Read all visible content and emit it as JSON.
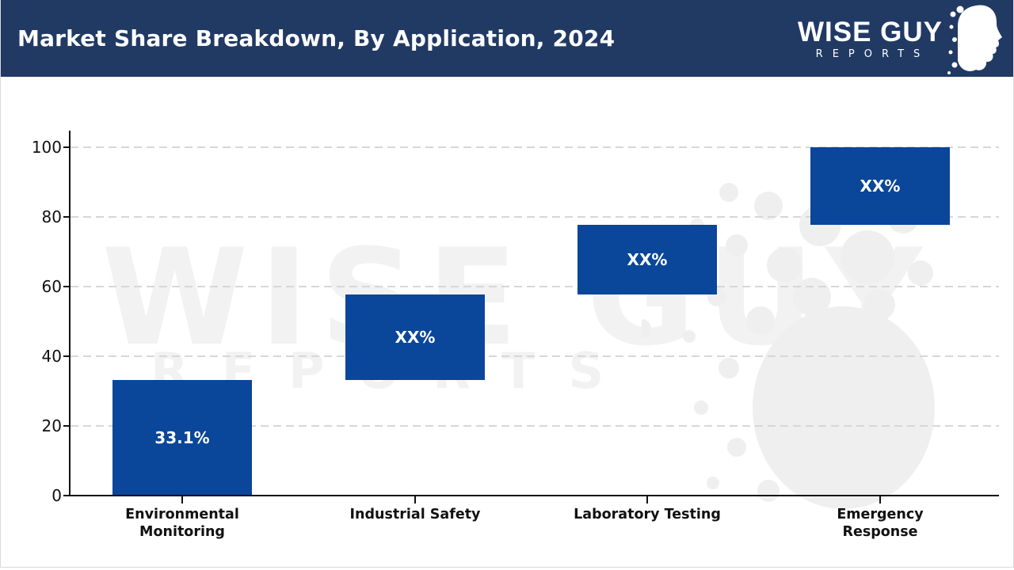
{
  "header": {
    "title": "Market Share Breakdown, By Application, 2024",
    "background_color": "#213a64",
    "brand": {
      "line1": "WISE GUY",
      "line2": "REPORTS"
    }
  },
  "watermark": {
    "line1": "WISE GUY",
    "line2": "REPORTS"
  },
  "chart_data": {
    "type": "bar",
    "subtype": "waterfall",
    "title": "Market Share Breakdown, By Application, 2024",
    "categories": [
      "Environmental Monitoring",
      "Industrial Safety",
      "Laboratory Testing",
      "Emergency Response"
    ],
    "series": [
      {
        "category": "Environmental Monitoring",
        "start": 0,
        "end": 33.1,
        "value_label": "33.1%"
      },
      {
        "category": "Industrial Safety",
        "start": 33.1,
        "end": 57.8,
        "value_label": "XX%"
      },
      {
        "category": "Laboratory Testing",
        "start": 57.8,
        "end": 77.8,
        "value_label": "XX%"
      },
      {
        "category": "Emergency Response",
        "start": 77.8,
        "end": 100,
        "value_label": "XX%"
      }
    ],
    "yticks": [
      0,
      20,
      40,
      60,
      80,
      100
    ],
    "ylim": [
      0,
      104
    ],
    "xlabel": "",
    "ylabel": "",
    "grid": "horizontal-dashed",
    "legend": "none",
    "bar_color": "#0a4699",
    "bar_label_color": "#ffffff",
    "axis_color": "#111111",
    "grid_color": "#d7d7d7"
  }
}
